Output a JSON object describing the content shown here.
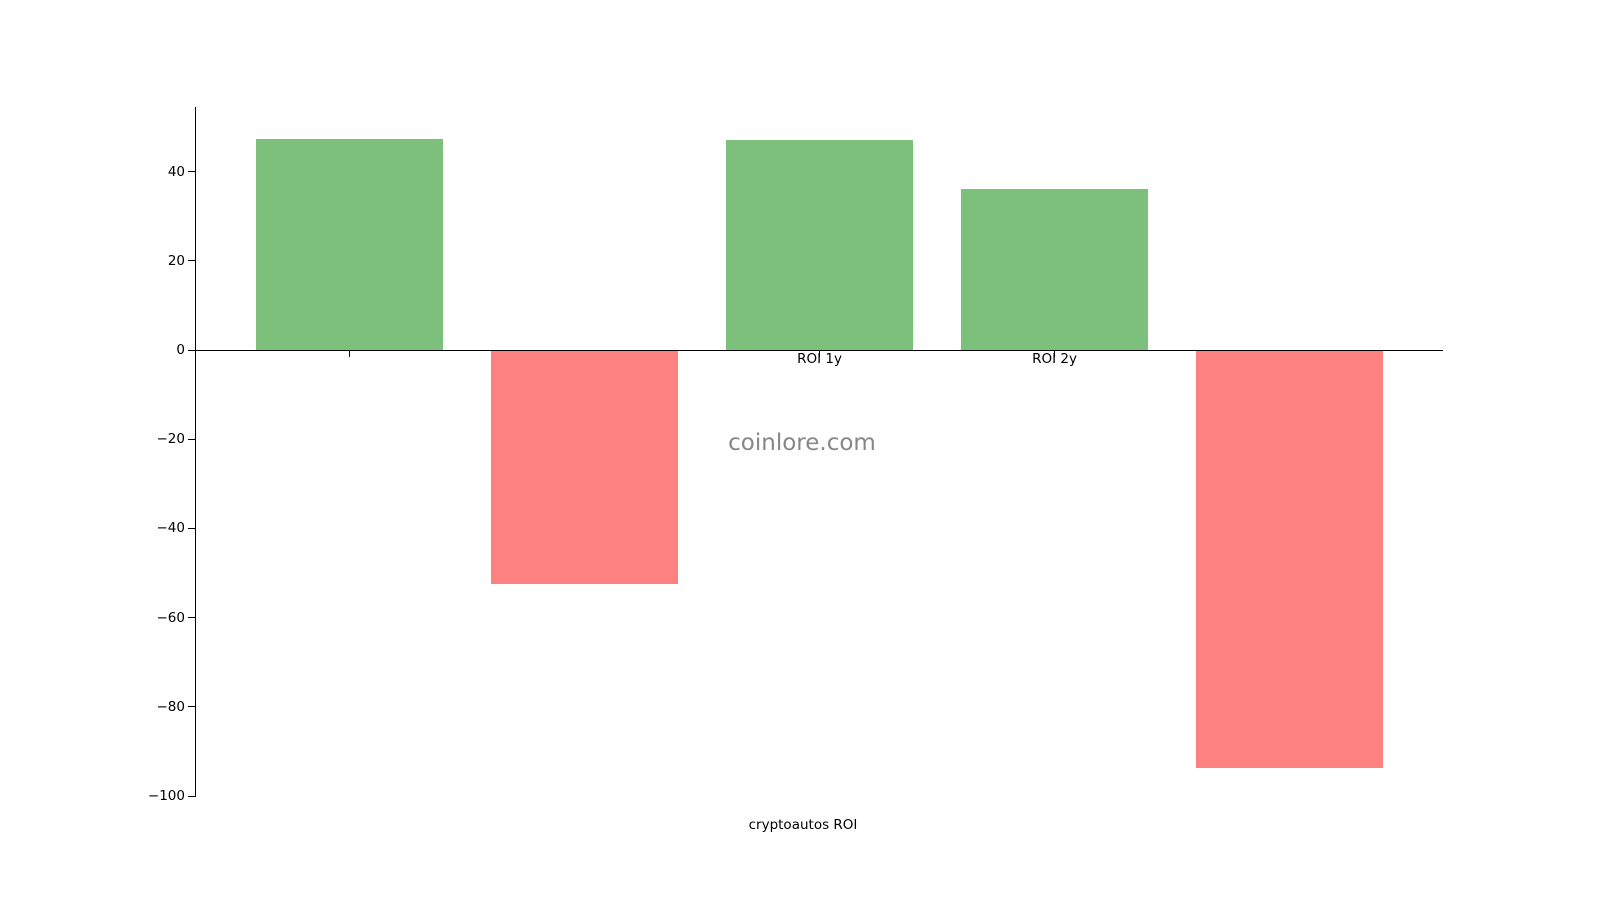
{
  "chart_data": {
    "type": "bar",
    "categories": [
      "",
      "",
      "ROI 1y",
      "ROI 2y",
      ""
    ],
    "values": [
      47.2,
      -52.5,
      47.1,
      36.1,
      -93.7
    ],
    "title": "",
    "xlabel": "cryptoautos ROI",
    "ylabel": "",
    "ylim": [
      -100,
      54.5
    ],
    "yticks": [
      40,
      20,
      0,
      -20,
      -40,
      -60,
      -80,
      -100
    ],
    "ytick_labels": [
      "40",
      "20",
      "0",
      "−20",
      "−40",
      "−60",
      "−80",
      "−100"
    ],
    "grid": false,
    "legend": "none",
    "watermark": "coinlore.com",
    "colors": {
      "positive_bar": "#7cc07c",
      "negative_bar": "#fd8181",
      "axis": "#000000",
      "watermark_text": "#878787"
    }
  }
}
